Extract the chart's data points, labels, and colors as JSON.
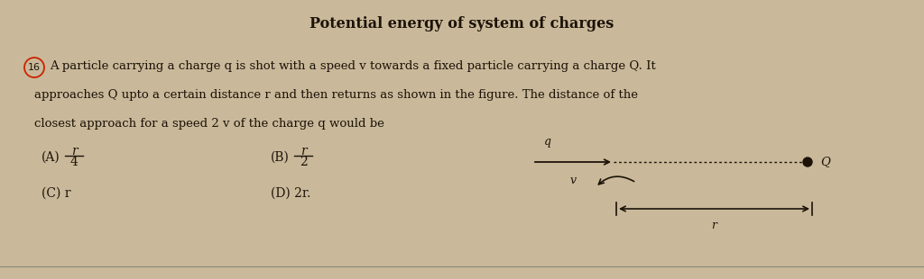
{
  "background_color": "#c9b99a",
  "title": "Potential energy of system of charges",
  "title_fontsize": 11.5,
  "title_fontweight": "bold",
  "text_color": "#1c1208",
  "circle_color": "#cc2200",
  "question_line1": "A particle carrying a charge q is shot with a speed v towards a fixed particle carrying a charge Q. It",
  "question_line2": "approaches Q upto a certain distance r and then returns as shown in the figure. The distance of the",
  "question_line3": "closest approach for a speed 2 v of the charge q would be",
  "opt_A_label": "(A)",
  "opt_A_num": "r",
  "opt_A_den": "4",
  "opt_B_label": "(B)",
  "opt_B_num": "r",
  "opt_B_den": "2",
  "opt_C": "(C) r",
  "opt_D": "(D) 2r.",
  "bottom_line_color": "#888877",
  "fig_q_label": "q",
  "fig_v_label": "v",
  "fig_Q_label": "Q",
  "fig_r_label": "r"
}
